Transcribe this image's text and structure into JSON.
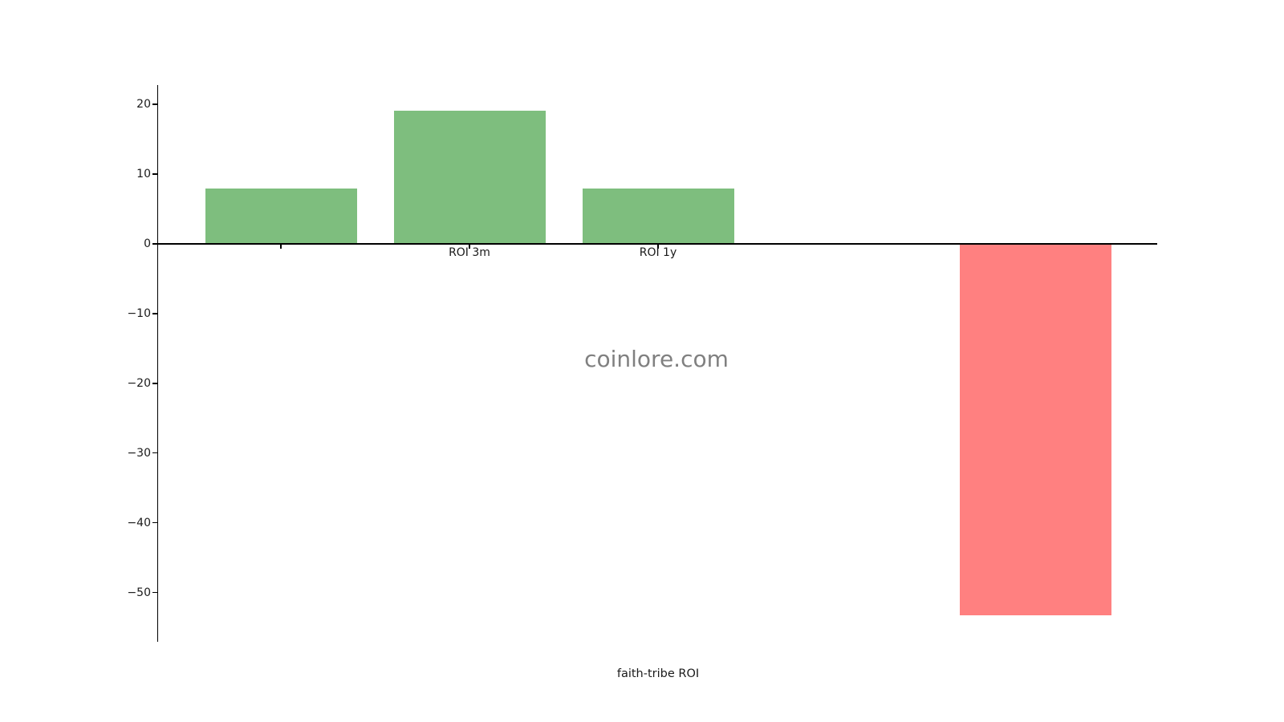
{
  "chart_data": {
    "type": "bar",
    "title": "",
    "xlabel": "faith-tribe ROI",
    "ylabel": "",
    "watermark": "coinlore.com",
    "grid": false,
    "legend": false,
    "slots": [
      {
        "label": "",
        "value": 7.9,
        "tick": true
      },
      {
        "label": "ROI 3m",
        "value": 19.1,
        "tick": true
      },
      {
        "label": "ROI 1y",
        "value": 7.9,
        "tick": true
      },
      {
        "label": "",
        "value": null,
        "tick": false
      },
      {
        "label": "",
        "value": -53.3,
        "tick": false
      }
    ],
    "y_ticks": [
      {
        "label": "20",
        "value": 20
      },
      {
        "label": "10",
        "value": 10
      },
      {
        "label": "0",
        "value": 0
      },
      {
        "label": "−10",
        "value": -10
      },
      {
        "label": "−20",
        "value": -20
      },
      {
        "label": "−30",
        "value": -30
      },
      {
        "label": "−40",
        "value": -40
      },
      {
        "label": "−50",
        "value": -50
      }
    ],
    "ylim": [
      -57.1,
      22.8
    ],
    "colors": {
      "positive": "#7ebe7e",
      "negative": "#ff8080",
      "axis": "#000000",
      "tick_text": "#1a1a1a",
      "watermark": "#808080"
    }
  }
}
